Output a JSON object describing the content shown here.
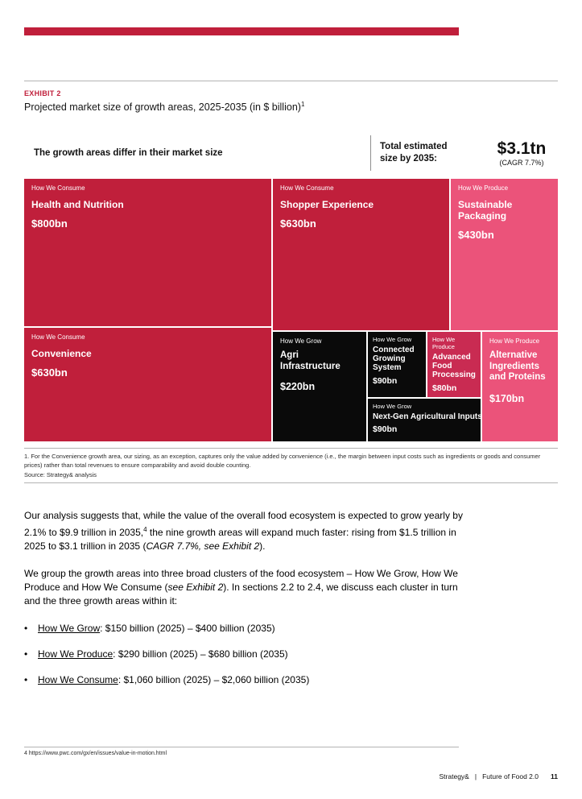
{
  "colors": {
    "accent_red": "#C01F3B",
    "produce_pink": "#EB537A",
    "produce_dark": "#C92B52",
    "grow_black": "#0A0A0A"
  },
  "exhibit": {
    "label": "EXHIBIT 2",
    "title": "Projected market size of growth areas, 2025-2035 (in $ billion)",
    "title_sup": "1",
    "subtitle": "The growth areas differ in their market size",
    "total_label_line1": "Total estimated",
    "total_label_line2": "size by 2035:",
    "total_value": "$3.1tn",
    "total_cagr": "(CAGR 7.7%)",
    "footnote_line1": "1. For the Convenience growth area, our sizing, as an exception, captures only the value added by convenience (i.e., the margin between input costs such as ingredients or goods and consumer prices) rather than total revenues to ensure comparability and avoid double counting.",
    "footnote_line2": "Source: Strategy& analysis"
  },
  "chart_data": {
    "type": "treemap",
    "title": "Projected market size of growth areas, 2025-2035 (in $ billion)",
    "unit": "USD billion",
    "total_estimated_size_by_2035": "$3.1tn",
    "cagr": "7.7%",
    "legend_position": "none",
    "cells": [
      {
        "cluster": "How We Consume",
        "name": "Health and Nutrition",
        "value": 800,
        "label": "$800bn",
        "color": "#C01F3B"
      },
      {
        "cluster": "How We Consume",
        "name": "Shopper Experience",
        "value": 630,
        "label": "$630bn",
        "color": "#C01F3B"
      },
      {
        "cluster": "How We Produce",
        "name": "Sustainable Packaging",
        "value": 430,
        "label": "$430bn",
        "color": "#EB537A"
      },
      {
        "cluster": "How We Consume",
        "name": "Convenience",
        "value": 630,
        "label": "$630bn",
        "color": "#C01F3B"
      },
      {
        "cluster": "How We Grow",
        "name": "Agri Infrastructure",
        "value": 220,
        "label": "$220bn",
        "color": "#0A0A0A"
      },
      {
        "cluster": "How We Grow",
        "name": "Connected Growing System",
        "value": 90,
        "label": "$90bn",
        "color": "#0A0A0A"
      },
      {
        "cluster": "How We Produce",
        "name": "Advanced Food Processing",
        "value": 80,
        "label": "$80bn",
        "color": "#C92B52"
      },
      {
        "cluster": "How We Grow",
        "name": "Next-Gen Agricultural Inputs",
        "value": 90,
        "label": "$90bn",
        "color": "#0A0A0A"
      },
      {
        "cluster": "How We Produce",
        "name": "Alternative Ingredients and Proteins",
        "value": 170,
        "label": "$170bn",
        "color": "#EB537A"
      }
    ]
  },
  "body": {
    "bullet_char": "•",
    "p1": {
      "t1": "Our analysis suggests that, while the value of the overall food ecosystem is expected to grow yearly by 2.1% to $9.9 trillion in 2035,",
      "sup": "4",
      "t2": " the nine growth areas will expand much faster: rising from $1.5 trillion in 2025 to $3.1 trillion in 2035 (",
      "italic": "CAGR 7.7%, see Exhibit 2",
      "t3": ")."
    },
    "p2": {
      "t1": "We group the growth areas into three broad clusters of the food ecosystem – How We Grow, How We Produce and How We Consume (",
      "italic": "see Exhibit 2",
      "t2": "). In sections 2.2 to 2.4, we discuss each cluster in turn and the three growth areas within it:"
    },
    "bullets": [
      {
        "link": "How We Grow",
        "rest": ": $150 billion (2025) – $400 billion (2035)"
      },
      {
        "link": "How We Produce",
        "rest": ": $290 billion (2025) – $680 billion (2035)"
      },
      {
        "link": "How We Consume",
        "rest": ": $1,060 billion (2025) – $2,060 billion (2035)"
      }
    ]
  },
  "footnote4": {
    "marker": "4",
    "text": "https://www.pwc.com/gx/en/issues/value-in-motion.html"
  },
  "footer": {
    "brand": "Strategy&",
    "sep": "|",
    "doc": "Future of Food 2.0",
    "page": "11"
  }
}
